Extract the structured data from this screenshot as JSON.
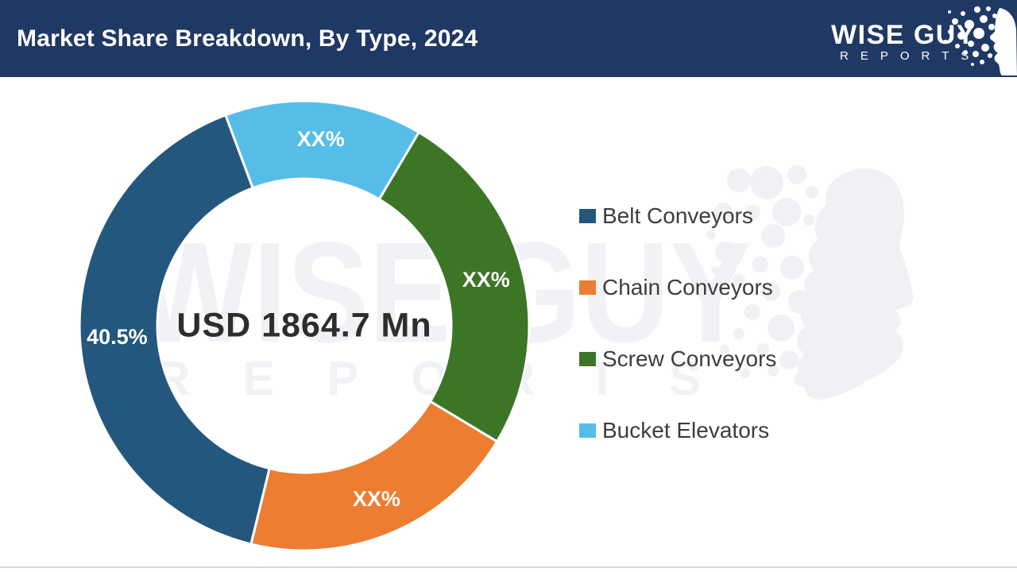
{
  "header": {
    "title": "Market Share Breakdown, By Type, 2024",
    "logo": {
      "line1": "WISE GUY",
      "line2": "REPORTS"
    }
  },
  "watermark": {
    "line1": "WISE GUY",
    "line2": "REPORTS"
  },
  "chart_data": {
    "type": "pie",
    "subtype": "donut",
    "title": "Market Share Breakdown, By Type, 2024",
    "center_label": "USD 1864.7 Mn",
    "start_angle_deg": 110.5,
    "direction": "counterclockwise",
    "legend_position": "right",
    "slices": [
      {
        "name": "Belt Conveyors",
        "label": "40.5%",
        "value": 40.5,
        "color": "#24577e"
      },
      {
        "name": "Chain Conveyors",
        "label": "XX%",
        "value": 20.2,
        "color": "#ed7d31"
      },
      {
        "name": "Screw Conveyors",
        "label": "XX%",
        "value": 25.1,
        "color": "#3d7527"
      },
      {
        "name": "Bucket Elevators",
        "label": "XX%",
        "value": 14.2,
        "color": "#56bde8"
      }
    ]
  },
  "colors": {
    "header_bg": "#203864",
    "slice_label_text": "#ffffff",
    "center_text": "#2d2d2d",
    "legend_text": "#3d3d3d",
    "divider": "#d9d9d9",
    "watermark": "#f0f1f4"
  }
}
